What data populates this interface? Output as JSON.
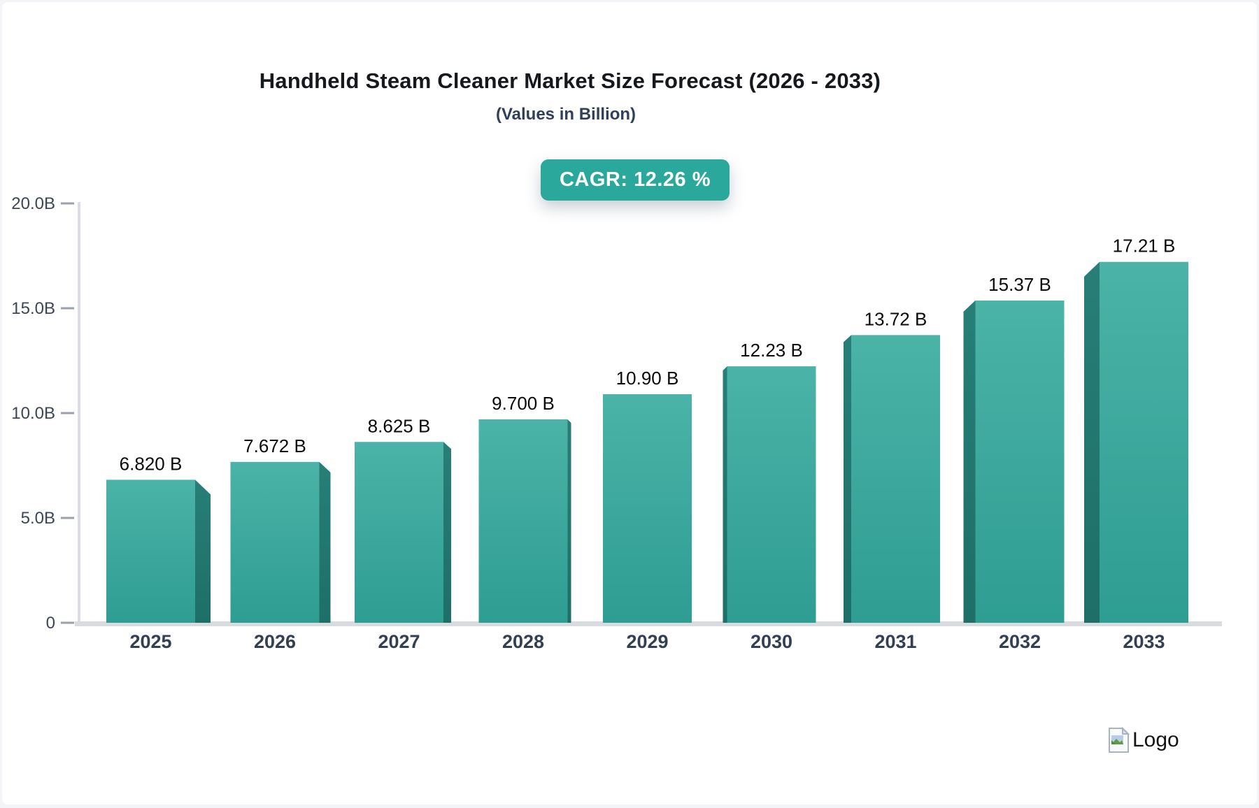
{
  "page": {
    "background": "#f2f4f7",
    "card_background": "#ffffff"
  },
  "header": {
    "title": "Handheld Steam Cleaner Market Size Forecast (2026 - 2033)",
    "subtitle": "(Values in Billion)"
  },
  "badge": {
    "label": "CAGR: 12.26 %",
    "background": "#2aa89c",
    "text_color": "#ffffff"
  },
  "footer": {
    "logo_alt": "Logo"
  },
  "chart_data": {
    "type": "bar",
    "title": "Handheld Steam Cleaner Market Size Forecast (2026 - 2033)",
    "subtitle": "(Values in Billion)",
    "categories": [
      "2025",
      "2026",
      "2027",
      "2028",
      "2029",
      "2030",
      "2031",
      "2032",
      "2033"
    ],
    "values": [
      6.82,
      7.672,
      8.625,
      9.7,
      10.9,
      12.23,
      13.72,
      15.37,
      17.21
    ],
    "value_labels": [
      "6.820 B",
      "7.672 B",
      "8.625 B",
      "9.700 B",
      "10.90 B",
      "12.23 B",
      "13.72 B",
      "15.37 B",
      "17.21 B"
    ],
    "annotation": "CAGR: 12.26 %",
    "xlabel": "",
    "ylabel": "",
    "ylim": [
      0,
      20
    ],
    "y_ticks": [
      {
        "value": 0,
        "label": "0"
      },
      {
        "value": 5,
        "label": "5.0B"
      },
      {
        "value": 10,
        "label": "10.0B"
      },
      {
        "value": 15,
        "label": "15.0B"
      },
      {
        "value": 20,
        "label": "20.0B"
      }
    ],
    "grid": false,
    "legend": false,
    "bar_style": {
      "effect": "3d-perspective",
      "face_top": "#4bb3a8",
      "face_bottom": "#2e9d92",
      "side": "#20776f",
      "axis_line": "#dadde5",
      "baseline": "#d8dce1",
      "tick": "#98a1ad",
      "tick_label_color": "#3c4656",
      "category_label_color": "#333f52",
      "value_label_color": "#0b0b0b"
    }
  }
}
